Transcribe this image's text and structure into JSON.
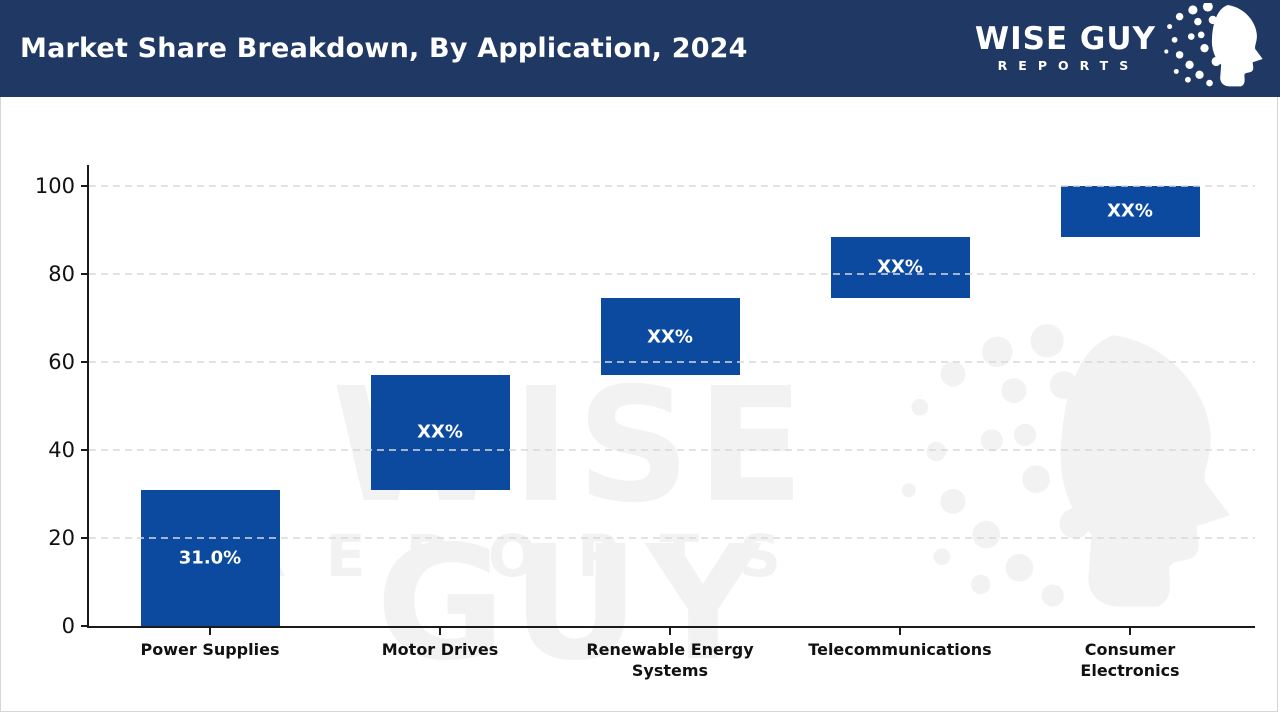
{
  "header": {
    "title": "Market Share Breakdown, By Application, 2024",
    "logo": {
      "line1": "WISE GUY",
      "line2": "REPORTS"
    }
  },
  "watermark": {
    "line1": "WISE GUY",
    "line2": "REPORTS"
  },
  "chart_data": {
    "type": "bar",
    "variant": "floating-stacked-breakdown",
    "title": "Market Share Breakdown, By Application, 2024",
    "categories": [
      "Power Supplies",
      "Motor Drives",
      "Renewable Energy Systems",
      "Telecommunications",
      "Consumer Electronics"
    ],
    "bars": [
      {
        "category": "Power Supplies",
        "start": 0,
        "end": 31,
        "value_label": "31.0%"
      },
      {
        "category": "Motor Drives",
        "start": 31,
        "end": 57,
        "value_label": "XX%"
      },
      {
        "category": "Renewable Energy Systems",
        "start": 57,
        "end": 74.5,
        "value_label": "XX%"
      },
      {
        "category": "Telecommunications",
        "start": 74.5,
        "end": 88.5,
        "value_label": "XX%"
      },
      {
        "category": "Consumer Electronics",
        "start": 88.5,
        "end": 100,
        "value_label": "XX%"
      }
    ],
    "yticks": [
      0,
      20,
      40,
      60,
      80,
      100
    ],
    "ylim": [
      0,
      105
    ],
    "grid": "dashed-horizontal-above-bars",
    "legend": "none",
    "bar_color": "#0b4a9e",
    "value_label_color": "#ffffff",
    "axis_color": "#1a1a1a",
    "header_color": "#203864"
  }
}
